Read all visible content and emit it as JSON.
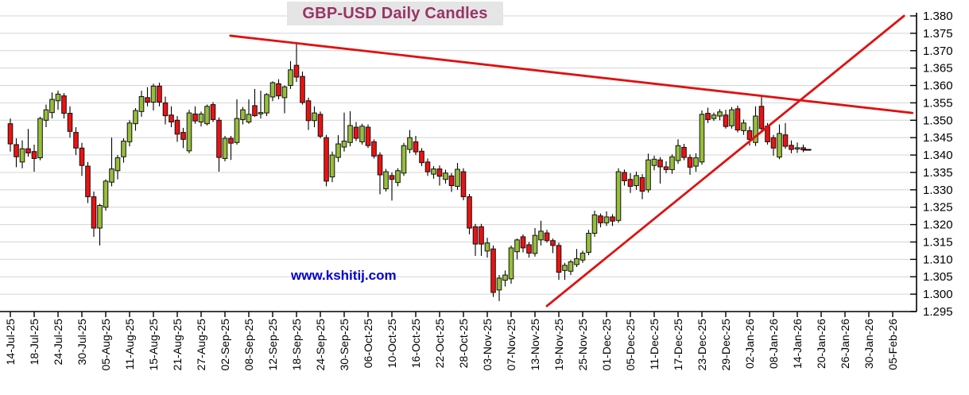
{
  "title": "GBP-USD Daily Candles",
  "watermark": "www.kshitij.com",
  "colors": {
    "up_candle": "#97BE3A",
    "down_candle": "#EE1111",
    "candle_outline": "#111111",
    "wick": "#000000",
    "trendline": "#E01111",
    "grid": "#D4D4D4",
    "axis": "#000000",
    "tick_text": "#000000",
    "title_text": "#993366",
    "title_bg": "#E5E5E5",
    "watermark_text": "#0000CC",
    "background": "#FFFFFF"
  },
  "chart_data": {
    "type": "candlestick",
    "title": "GBP-USD Daily Candles",
    "pair": "GBP-USD",
    "timeframe": "Daily",
    "grid": true,
    "y_axis": {
      "side": "right",
      "min": 1.295,
      "max": 1.38,
      "step": 0.005,
      "tick_labels": [
        "1.380",
        "1.375",
        "1.370",
        "1.365",
        "1.360",
        "1.355",
        "1.350",
        "1.345",
        "1.340",
        "1.335",
        "1.330",
        "1.325",
        "1.320",
        "1.315",
        "1.310",
        "1.305",
        "1.300",
        "1.295"
      ]
    },
    "x_axis": {
      "candles_per_tick": 4,
      "tick_labels": [
        "14-Jul-25",
        "18-Jul-25",
        "24-Jul-25",
        "30-Jul-25",
        "05-Aug-25",
        "11-Aug-25",
        "15-Aug-25",
        "21-Aug-25",
        "27-Aug-25",
        "02-Sep-25",
        "08-Sep-25",
        "12-Sep-25",
        "18-Sep-25",
        "24-Sep-25",
        "30-Sep-25",
        "06-Oct-25",
        "10-Oct-25",
        "16-Oct-25",
        "22-Oct-25",
        "28-Oct-25",
        "03-Nov-25",
        "07-Nov-25",
        "13-Nov-25",
        "19-Nov-25",
        "25-Nov-25",
        "01-Dec-25",
        "05-Dec-25",
        "11-Dec-25",
        "17-Dec-25",
        "23-Dec-25",
        "29-Dec-25",
        "02-Jan-26",
        "08-Jan-26",
        "14-Jan-26",
        "20-Jan-26",
        "26-Jan-26",
        "30-Jan-26",
        "05-Feb-26"
      ]
    },
    "candles_format": [
      "open",
      "high",
      "low",
      "close"
    ],
    "candles": [
      [
        1.349,
        1.3505,
        1.341,
        1.3432
      ],
      [
        1.343,
        1.3448,
        1.3365,
        1.3395
      ],
      [
        1.338,
        1.3442,
        1.3362,
        1.3418
      ],
      [
        1.3418,
        1.3475,
        1.3395,
        1.3406
      ],
      [
        1.341,
        1.343,
        1.3352,
        1.339
      ],
      [
        1.3392,
        1.351,
        1.3385,
        1.3505
      ],
      [
        1.35,
        1.3545,
        1.348,
        1.353
      ],
      [
        1.3522,
        1.358,
        1.3505,
        1.356
      ],
      [
        1.3556,
        1.3585,
        1.353,
        1.3575
      ],
      [
        1.357,
        1.3578,
        1.3505,
        1.352
      ],
      [
        1.352,
        1.354,
        1.345,
        1.3468
      ],
      [
        1.3465,
        1.348,
        1.34,
        1.342
      ],
      [
        1.342,
        1.3435,
        1.334,
        1.337
      ],
      [
        1.3368,
        1.338,
        1.3262,
        1.328
      ],
      [
        1.328,
        1.3295,
        1.3165,
        1.319
      ],
      [
        1.319,
        1.326,
        1.314,
        1.3255
      ],
      [
        1.325,
        1.333,
        1.324,
        1.3325
      ],
      [
        1.3322,
        1.345,
        1.331,
        1.336
      ],
      [
        1.3355,
        1.34,
        1.333,
        1.3392
      ],
      [
        1.3395,
        1.3448,
        1.3378,
        1.344
      ],
      [
        1.3438,
        1.35,
        1.3425,
        1.3492
      ],
      [
        1.349,
        1.3535,
        1.347,
        1.3528
      ],
      [
        1.3525,
        1.3585,
        1.351,
        1.3568
      ],
      [
        1.3565,
        1.3595,
        1.354,
        1.3552
      ],
      [
        1.3552,
        1.3605,
        1.3528,
        1.3598
      ],
      [
        1.3598,
        1.3608,
        1.354,
        1.3552
      ],
      [
        1.355,
        1.3568,
        1.3488,
        1.3513
      ],
      [
        1.3515,
        1.354,
        1.348,
        1.3495
      ],
      [
        1.35,
        1.3512,
        1.3438,
        1.346
      ],
      [
        1.3465,
        1.3478,
        1.342,
        1.3445
      ],
      [
        1.3412,
        1.353,
        1.3405,
        1.3521
      ],
      [
        1.3518,
        1.354,
        1.349,
        1.3498
      ],
      [
        1.3495,
        1.3525,
        1.3482,
        1.3518
      ],
      [
        1.349,
        1.3545,
        1.3485,
        1.354
      ],
      [
        1.3545,
        1.3552,
        1.3495,
        1.3502
      ],
      [
        1.35,
        1.3508,
        1.3352,
        1.3393
      ],
      [
        1.339,
        1.3455,
        1.3382,
        1.3448
      ],
      [
        1.3448,
        1.3455,
        1.3386,
        1.3434
      ],
      [
        1.3436,
        1.356,
        1.343,
        1.3505
      ],
      [
        1.3502,
        1.3538,
        1.3488,
        1.353
      ],
      [
        1.3495,
        1.356,
        1.349,
        1.3517
      ],
      [
        1.3542,
        1.359,
        1.351,
        1.3513
      ],
      [
        1.352,
        1.3585,
        1.3505,
        1.3522
      ],
      [
        1.3521,
        1.3578,
        1.3512,
        1.3574
      ],
      [
        1.3567,
        1.3612,
        1.3555,
        1.3608
      ],
      [
        1.3605,
        1.3618,
        1.356,
        1.357
      ],
      [
        1.3565,
        1.36,
        1.352,
        1.3596
      ],
      [
        1.36,
        1.367,
        1.359,
        1.3645
      ],
      [
        1.3658,
        1.3725,
        1.361,
        1.3624
      ],
      [
        1.3626,
        1.364,
        1.3545,
        1.3551
      ],
      [
        1.3556,
        1.3565,
        1.3472,
        1.3499
      ],
      [
        1.3499,
        1.354,
        1.348,
        1.3521
      ],
      [
        1.3517,
        1.3525,
        1.3448,
        1.3454
      ],
      [
        1.345,
        1.3458,
        1.331,
        1.3325
      ],
      [
        1.3337,
        1.341,
        1.3322,
        1.34
      ],
      [
        1.3393,
        1.3457,
        1.338,
        1.3432
      ],
      [
        1.3423,
        1.3522,
        1.341,
        1.344
      ],
      [
        1.3436,
        1.3526,
        1.3425,
        1.3485
      ],
      [
        1.348,
        1.3495,
        1.344,
        1.3448
      ],
      [
        1.3438,
        1.349,
        1.343,
        1.3483
      ],
      [
        1.348,
        1.3488,
        1.342,
        1.3427
      ],
      [
        1.3438,
        1.3445,
        1.339,
        1.3397
      ],
      [
        1.34,
        1.3408,
        1.3287,
        1.3343
      ],
      [
        1.3303,
        1.336,
        1.3295,
        1.3352
      ],
      [
        1.3341,
        1.335,
        1.3269,
        1.333
      ],
      [
        1.3321,
        1.3362,
        1.331,
        1.3355
      ],
      [
        1.3348,
        1.3435,
        1.334,
        1.3427
      ],
      [
        1.3416,
        1.3472,
        1.3405,
        1.345
      ],
      [
        1.3438,
        1.3455,
        1.34,
        1.3409
      ],
      [
        1.3411,
        1.342,
        1.3368,
        1.3378
      ],
      [
        1.338,
        1.339,
        1.334,
        1.3352
      ],
      [
        1.3345,
        1.3368,
        1.3332,
        1.336
      ],
      [
        1.336,
        1.337,
        1.3312,
        1.3339
      ],
      [
        1.333,
        1.3358,
        1.3318,
        1.3348
      ],
      [
        1.334,
        1.3348,
        1.3294,
        1.3312
      ],
      [
        1.331,
        1.3377,
        1.33,
        1.3359
      ],
      [
        1.3352,
        1.3362,
        1.327,
        1.328
      ],
      [
        1.328,
        1.3288,
        1.3172,
        1.319
      ],
      [
        1.3194,
        1.3202,
        1.311,
        1.3144
      ],
      [
        1.3194,
        1.3202,
        1.311,
        1.3144
      ],
      [
        1.3124,
        1.3162,
        1.3105,
        1.3147
      ],
      [
        1.313,
        1.314,
        1.2992,
        1.3005
      ],
      [
        1.3012,
        1.3055,
        1.298,
        1.3046
      ],
      [
        1.304,
        1.3068,
        1.3022,
        1.3055
      ],
      [
        1.3044,
        1.314,
        1.303,
        1.3133
      ],
      [
        1.3122,
        1.316,
        1.31,
        1.3156
      ],
      [
        1.3165,
        1.3172,
        1.312,
        1.3133
      ],
      [
        1.3142,
        1.315,
        1.3105,
        1.3118
      ],
      [
        1.3117,
        1.319,
        1.3108,
        1.3169
      ],
      [
        1.3156,
        1.3211,
        1.314,
        1.3181
      ],
      [
        1.3176,
        1.3185,
        1.3148,
        1.3154
      ],
      [
        1.3154,
        1.316,
        1.3118,
        1.314
      ],
      [
        1.314,
        1.3148,
        1.3041,
        1.3063
      ],
      [
        1.3068,
        1.309,
        1.3041,
        1.3083
      ],
      [
        1.3066,
        1.3098,
        1.3055,
        1.3093
      ],
      [
        1.3085,
        1.313,
        1.3078,
        1.3102
      ],
      [
        1.3098,
        1.3125,
        1.309,
        1.3118
      ],
      [
        1.312,
        1.3185,
        1.3112,
        1.3175
      ],
      [
        1.3175,
        1.324,
        1.3165,
        1.3228
      ],
      [
        1.3225,
        1.3232,
        1.3192,
        1.3205
      ],
      [
        1.3205,
        1.3238,
        1.3196,
        1.3222
      ],
      [
        1.3222,
        1.323,
        1.3196,
        1.321
      ],
      [
        1.3212,
        1.3362,
        1.3205,
        1.3352
      ],
      [
        1.335,
        1.3358,
        1.3312,
        1.3326
      ],
      [
        1.333,
        1.3348,
        1.3291,
        1.331
      ],
      [
        1.3312,
        1.3352,
        1.33,
        1.3341
      ],
      [
        1.3335,
        1.3345,
        1.3273,
        1.3296
      ],
      [
        1.33,
        1.3404,
        1.3292,
        1.3386
      ],
      [
        1.337,
        1.3398,
        1.3356,
        1.3388
      ],
      [
        1.3386,
        1.3394,
        1.3318,
        1.3366
      ],
      [
        1.3366,
        1.3382,
        1.3348,
        1.3358
      ],
      [
        1.3358,
        1.3402,
        1.3346,
        1.3395
      ],
      [
        1.3384,
        1.3445,
        1.3375,
        1.3427
      ],
      [
        1.3422,
        1.3432,
        1.3385,
        1.3393
      ],
      [
        1.3393,
        1.3402,
        1.3343,
        1.3365
      ],
      [
        1.3368,
        1.3405,
        1.3352,
        1.3392
      ],
      [
        1.338,
        1.3528,
        1.3372,
        1.3517
      ],
      [
        1.352,
        1.3536,
        1.3492,
        1.3502
      ],
      [
        1.3505,
        1.3522,
        1.3498,
        1.3515
      ],
      [
        1.3512,
        1.3532,
        1.35,
        1.3524
      ],
      [
        1.3515,
        1.353,
        1.3476,
        1.3482
      ],
      [
        1.3484,
        1.3538,
        1.3476,
        1.353
      ],
      [
        1.3533,
        1.3542,
        1.3465,
        1.3472
      ],
      [
        1.347,
        1.3502,
        1.3458,
        1.3492
      ],
      [
        1.347,
        1.3482,
        1.3427,
        1.3445
      ],
      [
        1.3436,
        1.354,
        1.3426,
        1.3512
      ],
      [
        1.354,
        1.3567,
        1.3468,
        1.3476
      ],
      [
        1.3483,
        1.3492,
        1.343,
        1.3438
      ],
      [
        1.345,
        1.3458,
        1.3398,
        1.342
      ],
      [
        1.3394,
        1.3488,
        1.3388,
        1.3462
      ],
      [
        1.3458,
        1.3492,
        1.3418,
        1.3425
      ],
      [
        1.3428,
        1.3442,
        1.3405,
        1.3416
      ],
      [
        1.3418,
        1.3436,
        1.3406,
        1.3421
      ],
      [
        1.3421,
        1.343,
        1.3408,
        1.3415
      ]
    ],
    "last_close_dash": true,
    "trendlines": [
      {
        "name": "descending-resistance",
        "x1_slot": 36.9,
        "y1_price": 1.3743,
        "x2_slot": 151.3,
        "y2_price": 1.3521
      },
      {
        "name": "ascending-support",
        "x1_slot": 90.0,
        "y1_price": 1.2966,
        "x2_slot": 149.9,
        "y2_price": 1.38
      }
    ]
  }
}
